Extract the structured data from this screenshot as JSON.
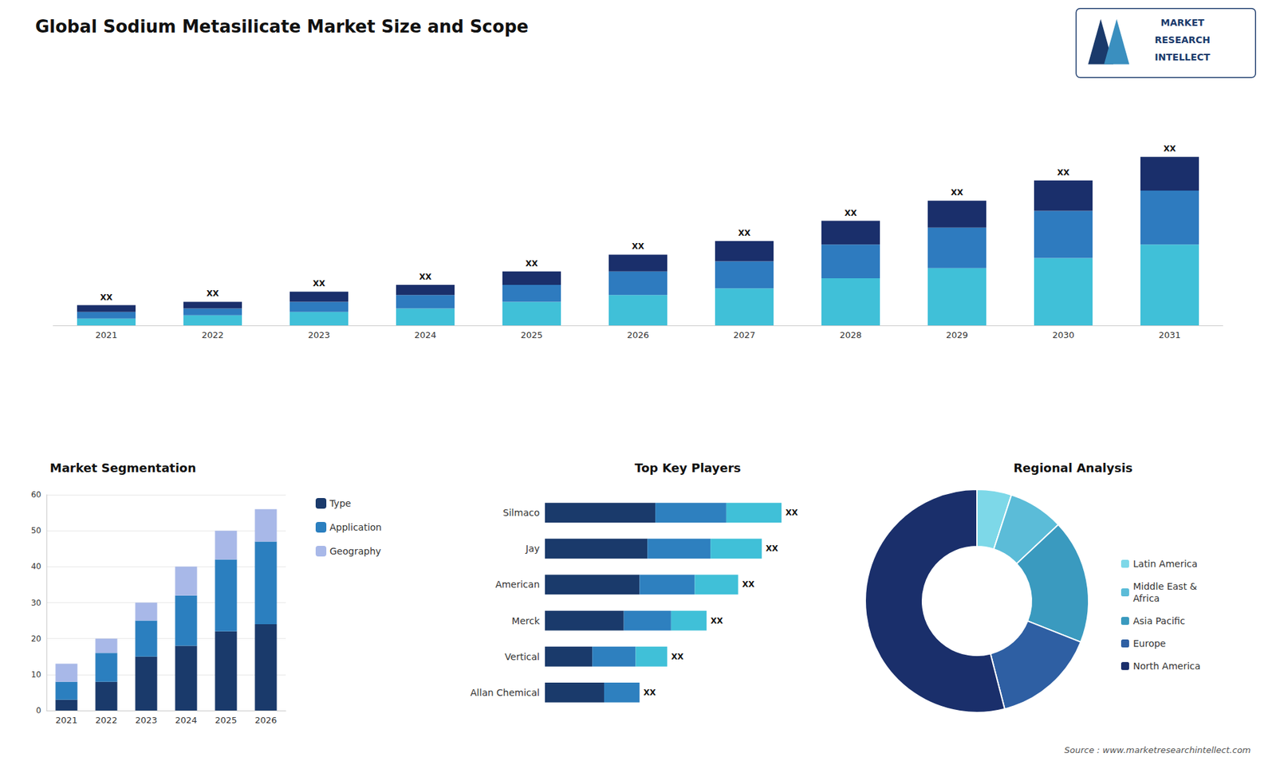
{
  "chart_data": [
    {
      "type": "bar",
      "title": "Global Sodium Metasilicate Market Size and Scope",
      "stacked": true,
      "categories": [
        "2021",
        "2022",
        "2023",
        "2024",
        "2025",
        "2026",
        "2027",
        "2028",
        "2029",
        "2030",
        "2031"
      ],
      "series": [
        {
          "color": "#40c0d8",
          "values": [
            2,
            3,
            4,
            5,
            7,
            9,
            11,
            14,
            17,
            20,
            24
          ]
        },
        {
          "color": "#2e7bbf",
          "values": [
            2,
            2,
            3,
            4,
            5,
            7,
            8,
            10,
            12,
            14,
            16
          ]
        },
        {
          "color": "#1a2f6b",
          "values": [
            2,
            2,
            3,
            3,
            4,
            5,
            6,
            7,
            8,
            9,
            10
          ],
          "value_labels": [
            "XX",
            "XX",
            "XX",
            "XX",
            "XX",
            "XX",
            "XX",
            "XX",
            "XX",
            "XX",
            "XX"
          ]
        }
      ],
      "ylim": [
        0,
        65
      ],
      "tick_labels": "x",
      "grid": false,
      "annotations": [
        "Source : www.marketresearchintellect.com",
        "MARKET",
        "RESEARCH",
        "INTELLECT"
      ]
    },
    {
      "type": "bar",
      "title": "Market Segmentation",
      "stacked": true,
      "categories": [
        "2021",
        "2022",
        "2023",
        "2024",
        "2025",
        "2026"
      ],
      "series": [
        {
          "name": "Type",
          "color": "#1a3a6b",
          "values": [
            3,
            8,
            15,
            18,
            22,
            24
          ]
        },
        {
          "name": "Application",
          "color": "#2b7fbf",
          "values": [
            5,
            8,
            10,
            14,
            20,
            23
          ]
        },
        {
          "name": "Geography",
          "color": "#a8b8e8",
          "values": [
            5,
            4,
            5,
            8,
            8,
            9
          ]
        }
      ],
      "ylim": [
        0,
        60
      ],
      "yticks": [
        0,
        10,
        20,
        30,
        40,
        50,
        60
      ],
      "grid": "y",
      "legend": "right"
    },
    {
      "type": "bar",
      "orientation": "horizontal",
      "title": "Top Key Players",
      "stacked": true,
      "categories": [
        "Silmaco",
        "Jay",
        "American",
        "Merck",
        "Vertical",
        "Allan Chemical"
      ],
      "series": [
        {
          "color": "#1a3a6b",
          "values": [
            28,
            26,
            24,
            20,
            12,
            15
          ]
        },
        {
          "color": "#2e80bf",
          "values": [
            18,
            16,
            14,
            12,
            11,
            9
          ]
        },
        {
          "color": "#40c0d8",
          "values": [
            14,
            13,
            11,
            9,
            8,
            0
          ],
          "value_labels": [
            "XX",
            "XX",
            "XX",
            "XX",
            "XX",
            "XX"
          ]
        }
      ],
      "xlim": [
        0,
        70.8
      ],
      "tick_labels": "y",
      "grid": false
    },
    {
      "type": "pie",
      "title": "Regional Analysis",
      "categories": [
        "Latin America",
        "Middle East &\nAfrica",
        "Asia Pacific",
        "Europe",
        "North America"
      ],
      "values": [
        5,
        8,
        18,
        15,
        54
      ],
      "colors": [
        "#7dd8e8",
        "#5bbcd8",
        "#3a9abf",
        "#2e5fa3",
        "#1a2f6b"
      ],
      "legend": "right"
    }
  ]
}
